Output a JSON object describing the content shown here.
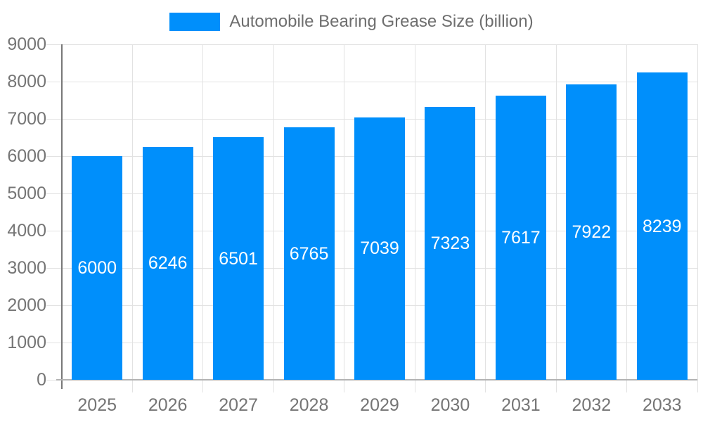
{
  "legend": {
    "label": "Automobile Bearing Grease Size (billion)",
    "swatch_color": "#008FFB"
  },
  "chart_data": {
    "type": "bar",
    "title": "Automobile Bearing Grease Size (billion)",
    "series_name": "Automobile Bearing Grease Size (billion)",
    "categories": [
      "2025",
      "2026",
      "2027",
      "2028",
      "2029",
      "2030",
      "2031",
      "2032",
      "2033"
    ],
    "values": [
      6000,
      6246,
      6501,
      6765,
      7039,
      7323,
      7617,
      7922,
      8239
    ],
    "value_labels": [
      "6000",
      "6246",
      "6501",
      "6765",
      "7039",
      "7323",
      "7617",
      "7922",
      "8239"
    ],
    "ylim": [
      0,
      9000
    ],
    "y_tick_step": 1000,
    "y_tick_labels": [
      "0",
      "1000",
      "2000",
      "3000",
      "4000",
      "5000",
      "6000",
      "7000",
      "8000",
      "9000"
    ],
    "bar_color": "#008FFB",
    "value_label_color": "#ffffff",
    "axis_text_color": "#757575",
    "gridline_color": "#e2e2e2",
    "grid": true,
    "legend_position": "top",
    "value_label_position": "middle-of-bar"
  }
}
